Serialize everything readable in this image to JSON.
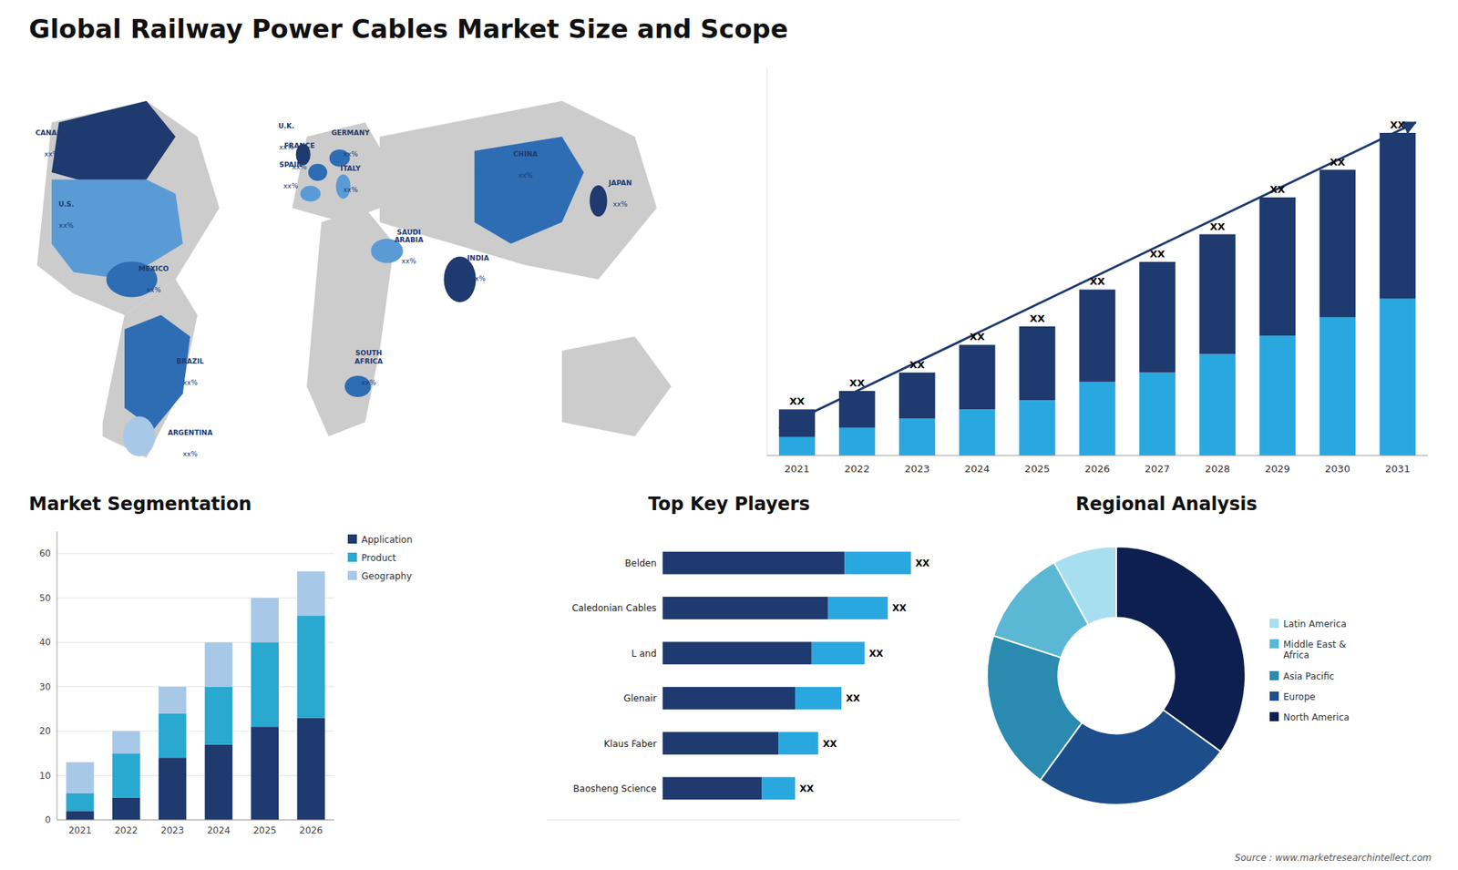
{
  "chart_data": [
    {
      "type": "map",
      "title": "Global Railway Power Cables Market Size and Scope",
      "categories": [
        "CANADA",
        "U.S.",
        "MEXICO",
        "BRAZIL",
        "ARGENTINA",
        "U.K.",
        "FRANCE",
        "SPAIN",
        "GERMANY",
        "ITALY",
        "SAUDI\nARABIA",
        "SOUTH\nAFRICA",
        "INDIA",
        "CHINA",
        "JAPAN"
      ],
      "annotations": [
        "xx%",
        "xx%",
        "xx%",
        "xx%",
        "xx%",
        "xx%",
        "xx%",
        "xx%",
        "xx%",
        "xx%",
        "xx%",
        "xx%",
        "xx%",
        "xx%",
        "xx%"
      ],
      "colors": [
        "#cccccc",
        "#1e3a6e",
        "#2e6db4",
        "#5b9bd5",
        "#a8c8e8"
      ],
      "color": "#1e3a6e"
    },
    {
      "type": "bar",
      "stacked": true,
      "categories": [
        "2021",
        "2022",
        "2023",
        "2024",
        "2025",
        "2026",
        "2027",
        "2028",
        "2029",
        "2030",
        "2031"
      ],
      "series": [
        {
          "color": "#29a8e0",
          "values": [
            2,
            3,
            4,
            5,
            6,
            8,
            9,
            11,
            13,
            15,
            17
          ]
        },
        {
          "color": "#1e3a6e",
          "values": [
            3,
            4,
            5,
            7,
            8,
            10,
            12,
            13,
            15,
            16,
            18
          ]
        }
      ],
      "annotations": [
        "XX",
        "XX",
        "XX",
        "XX",
        "XX",
        "XX",
        "XX",
        "XX",
        "XX",
        "XX",
        "XX"
      ],
      "ylim": [
        0,
        42
      ],
      "grid": false,
      "tick_labels": "x"
    },
    {
      "type": "bar",
      "stacked": true,
      "title": "Market Segmentation",
      "categories": [
        "2021",
        "2022",
        "2023",
        "2024",
        "2025",
        "2026"
      ],
      "series": [
        {
          "name": "Application",
          "color": "#1e3a6e",
          "values": [
            2,
            5,
            14,
            17,
            21,
            23
          ]
        },
        {
          "name": "Product",
          "color": "#29a8d0",
          "values": [
            4,
            10,
            10,
            13,
            19,
            23
          ]
        },
        {
          "name": "Geography",
          "color": "#a8c8e8",
          "values": [
            7,
            5,
            6,
            10,
            10,
            10
          ]
        }
      ],
      "ylim": [
        0,
        65
      ],
      "yticks": [
        0,
        10,
        20,
        30,
        40,
        50,
        60
      ],
      "grid": true,
      "legend": "right"
    },
    {
      "type": "bar",
      "stacked": true,
      "orientation": "horizontal",
      "title": "Top Key Players",
      "categories": [
        "Belden",
        "Caledonian Cables",
        "L and",
        "Glenair",
        "Klaus Faber",
        "Baosheng Science"
      ],
      "series": [
        {
          "color": "#1e3a6e",
          "values": [
            0.55,
            0.5,
            0.45,
            0.4,
            0.35,
            0.3
          ]
        },
        {
          "color": "#29a8e0",
          "values": [
            0.2,
            0.18,
            0.16,
            0.14,
            0.12,
            0.1
          ]
        }
      ],
      "annotations": [
        "XX",
        "XX",
        "XX",
        "XX",
        "XX",
        "XX"
      ],
      "xlim": [
        -0.35,
        0.9
      ],
      "tick_labels": "y"
    },
    {
      "type": "donut",
      "title": "Regional Analysis",
      "categories": [
        "Latin America",
        "Middle East &\nAfrica",
        "Asia Pacific",
        "Europe",
        "North America"
      ],
      "values": [
        8,
        12,
        20,
        25,
        35
      ],
      "colors": [
        "#a8dff0",
        "#5bb8d4",
        "#2a8ab0",
        "#1e4d8c",
        "#0d1f4e"
      ],
      "legend": "right",
      "annotations": [
        "Source : www.marketresearchintellect.com"
      ]
    }
  ]
}
